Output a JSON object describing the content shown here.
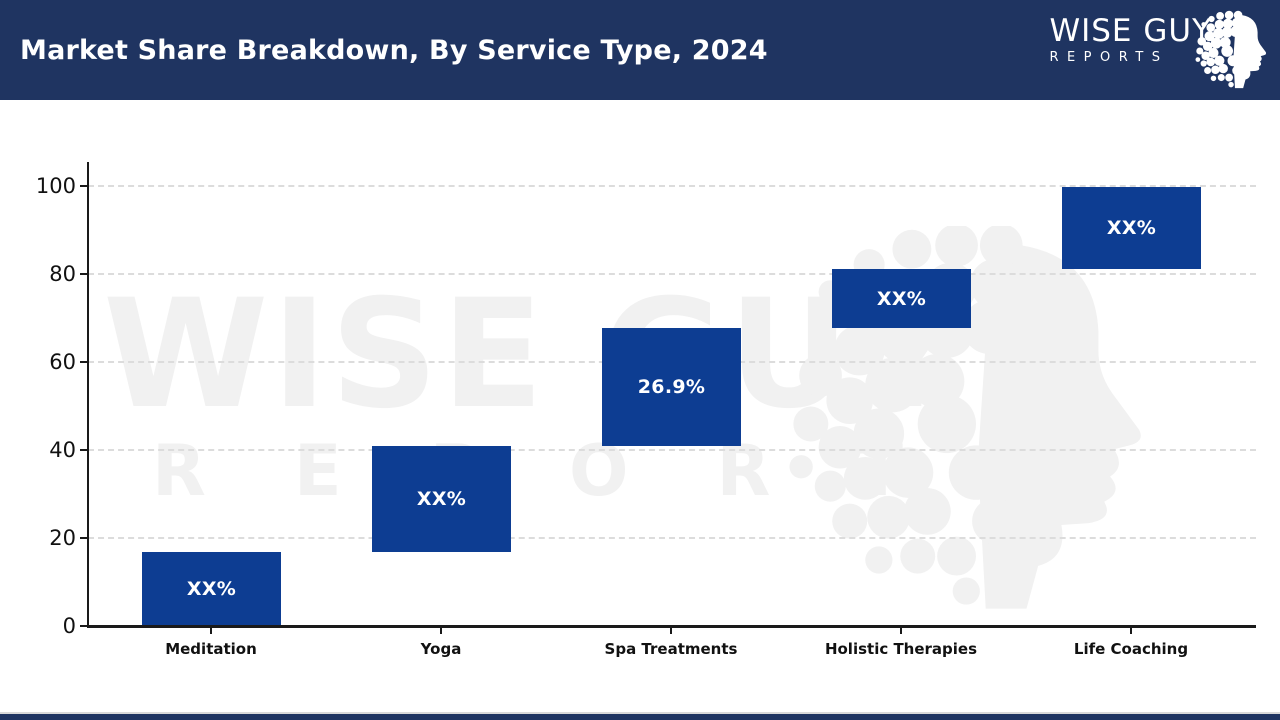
{
  "header": {
    "title": "Market Share Breakdown, By Service Type, 2024",
    "brand_line1": "WISE GUY",
    "brand_line2": "REPORTS"
  },
  "watermark": {
    "line1": "WISE GUY",
    "line2": "REPORTS"
  },
  "chart_data": {
    "type": "bar",
    "subtype": "floating-waterfall",
    "title": "Market Share Breakdown, By Service Type, 2024",
    "categories": [
      "Meditation",
      "Yoga",
      "Spa Treatments",
      "Holistic Therapies",
      "Life Coaching"
    ],
    "segments": [
      {
        "category": "Meditation",
        "start": 0.0,
        "end": 16.8,
        "label": "XX%"
      },
      {
        "category": "Yoga",
        "start": 16.8,
        "end": 40.8,
        "label": "XX%"
      },
      {
        "category": "Spa Treatments",
        "start": 40.8,
        "end": 67.7,
        "label": "26.9%"
      },
      {
        "category": "Holistic Therapies",
        "start": 67.7,
        "end": 81.2,
        "label": "XX%"
      },
      {
        "category": "Life Coaching",
        "start": 81.2,
        "end": 99.8,
        "label": "XX%"
      }
    ],
    "yticks": [
      0,
      20,
      40,
      60,
      80,
      100
    ],
    "ylim": [
      0,
      100
    ],
    "xlabel": "",
    "ylabel": "",
    "grid": "horizontal-dashed",
    "legend": "none",
    "bar_color": "#0d3d92",
    "bar_label_color": "#ffffff"
  },
  "colors": {
    "header_bg": "#1f3461",
    "footer_bg": "#1f3461",
    "bar": "#0d3d92",
    "gridline": "#dcdcdc",
    "axis": "#1a1a1a",
    "watermark": "#f1f1f1"
  }
}
